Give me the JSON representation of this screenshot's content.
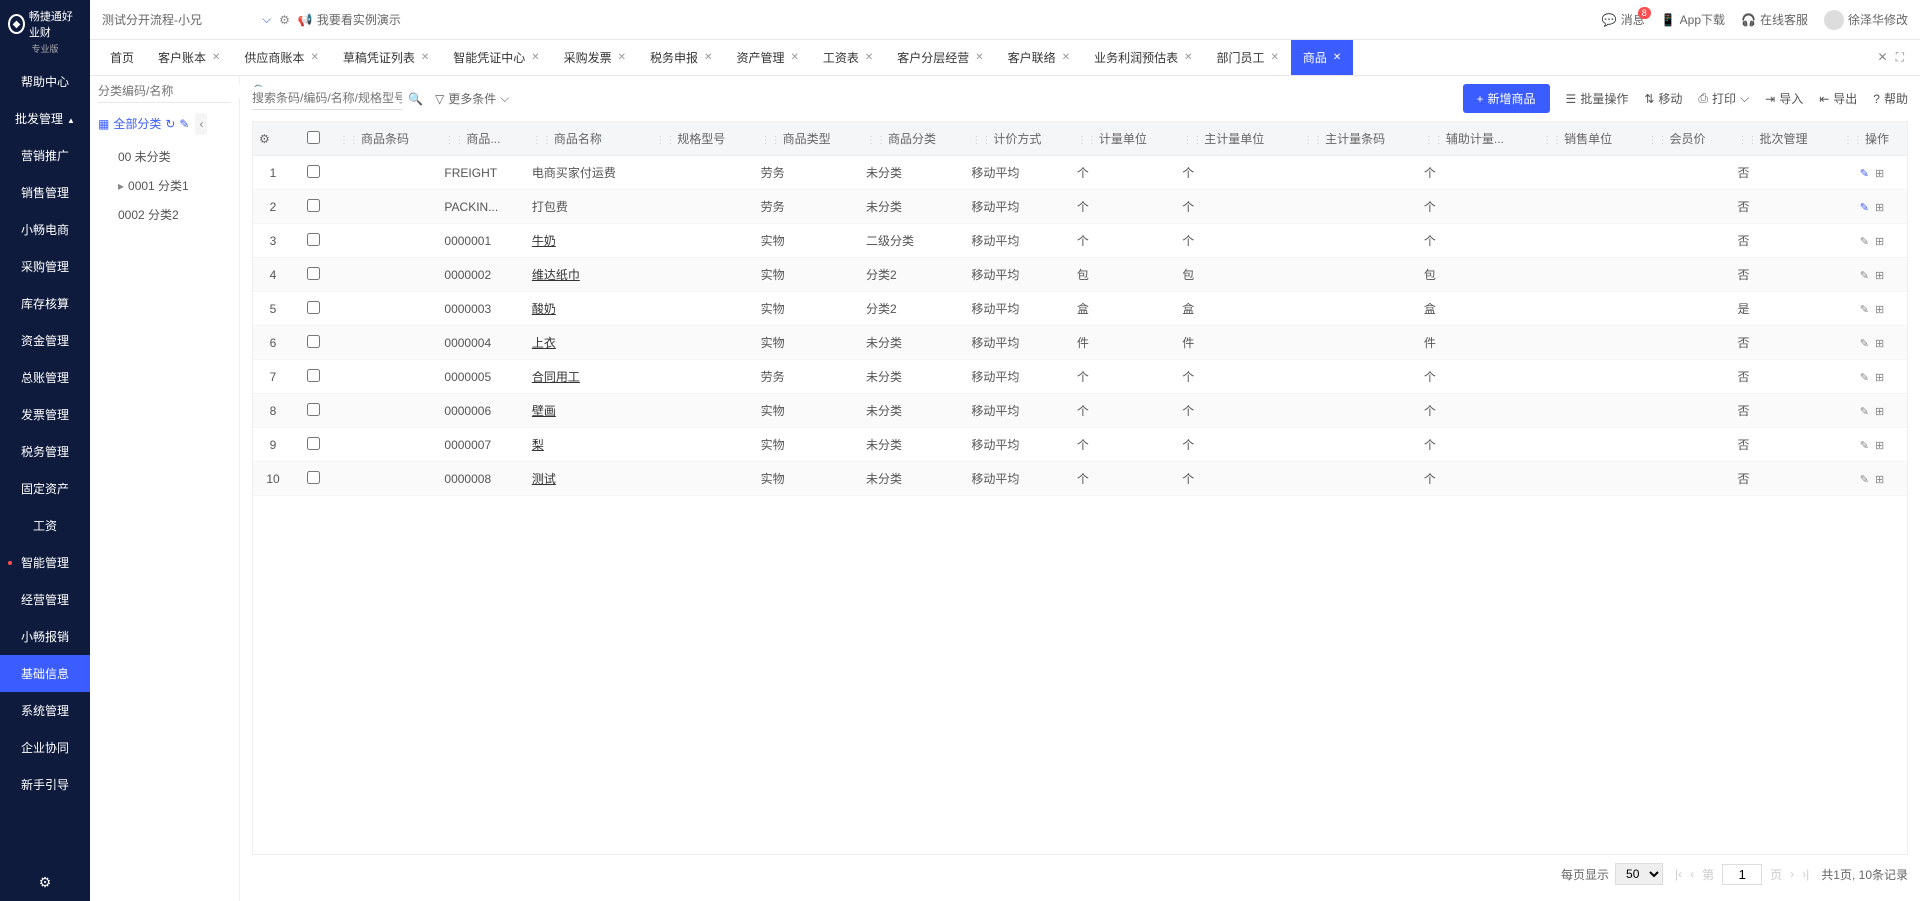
{
  "brand": {
    "name": "畅捷通好业财",
    "edition": "专业版"
  },
  "sidebar": {
    "items": [
      {
        "label": "帮助中心"
      },
      {
        "label": "批发管理",
        "expanded": true
      },
      {
        "label": "营销推广"
      },
      {
        "label": "销售管理"
      },
      {
        "label": "小畅电商"
      },
      {
        "label": "采购管理"
      },
      {
        "label": "库存核算"
      },
      {
        "label": "资金管理"
      },
      {
        "label": "总账管理"
      },
      {
        "label": "发票管理"
      },
      {
        "label": "税务管理"
      },
      {
        "label": "固定资产"
      },
      {
        "label": "工资"
      },
      {
        "label": "智能管理",
        "dot": true
      },
      {
        "label": "经营管理"
      },
      {
        "label": "小畅报销"
      },
      {
        "label": "基础信息",
        "active": true
      },
      {
        "label": "系统管理"
      },
      {
        "label": "企业协同"
      },
      {
        "label": "新手引导"
      }
    ]
  },
  "topbar": {
    "flow": "测试分开流程-小兄",
    "demo": "我要看实例演示",
    "msg": "消息",
    "msg_badge": "8",
    "download": "App下载",
    "service": "在线客服",
    "user": "徐泽华修改"
  },
  "tabs": [
    {
      "label": "首页",
      "closable": false
    },
    {
      "label": "客户账本"
    },
    {
      "label": "供应商账本"
    },
    {
      "label": "草稿凭证列表"
    },
    {
      "label": "智能凭证中心"
    },
    {
      "label": "采购发票"
    },
    {
      "label": "税务申报"
    },
    {
      "label": "资产管理"
    },
    {
      "label": "工资表"
    },
    {
      "label": "客户分层经营"
    },
    {
      "label": "客户联络"
    },
    {
      "label": "业务利润预估表"
    },
    {
      "label": "部门员工"
    },
    {
      "label": "商品",
      "active": true
    }
  ],
  "category": {
    "search_placeholder": "分类编码/名称",
    "all": "全部分类",
    "nodes": [
      {
        "label": "00 未分类"
      },
      {
        "label": "0001 分类1",
        "has_children": true
      },
      {
        "label": "0002 分类2"
      }
    ]
  },
  "toolbar": {
    "search_placeholder": "搜索条码/编码/名称/规格型号/别名",
    "more": "更多条件",
    "add": "新增商品",
    "batch": "批量操作",
    "move": "移动",
    "print": "打印",
    "import": "导入",
    "export": "导出",
    "help": "帮助"
  },
  "columns": [
    "商品条码",
    "商品...",
    "商品名称",
    "规格型号",
    "商品类型",
    "商品分类",
    "计价方式",
    "计量单位",
    "主计量单位",
    "主计量条码",
    "辅助计量...",
    "销售单位",
    "会员价",
    "批次管理",
    "操作"
  ],
  "rows": [
    {
      "code": "",
      "sku": "FREIGHT",
      "name": "电商买家付运费",
      "spec": "",
      "type": "劳务",
      "cat": "未分类",
      "price": "移动平均",
      "unit": "个",
      "main": "个",
      "mainbar": "",
      "aux": "个",
      "sale": "",
      "mprice": "",
      "batch": "否",
      "link": false,
      "edit_primary": true
    },
    {
      "code": "",
      "sku": "PACKIN...",
      "name": "打包费",
      "spec": "",
      "type": "劳务",
      "cat": "未分类",
      "price": "移动平均",
      "unit": "个",
      "main": "个",
      "mainbar": "",
      "aux": "个",
      "sale": "",
      "mprice": "",
      "batch": "否",
      "link": false,
      "edit_primary": true
    },
    {
      "code": "",
      "sku": "0000001",
      "name": "牛奶",
      "spec": "",
      "type": "实物",
      "cat": "二级分类",
      "price": "移动平均",
      "unit": "个",
      "main": "个",
      "mainbar": "",
      "aux": "个",
      "sale": "",
      "mprice": "",
      "batch": "否",
      "link": true
    },
    {
      "code": "",
      "sku": "0000002",
      "name": "维达纸巾",
      "spec": "",
      "type": "实物",
      "cat": "分类2",
      "price": "移动平均",
      "unit": "包",
      "main": "包",
      "mainbar": "",
      "aux": "包",
      "sale": "",
      "mprice": "",
      "batch": "否",
      "link": true
    },
    {
      "code": "",
      "sku": "0000003",
      "name": "酸奶",
      "spec": "",
      "type": "实物",
      "cat": "分类2",
      "price": "移动平均",
      "unit": "盒",
      "main": "盒",
      "mainbar": "",
      "aux": "盒",
      "sale": "",
      "mprice": "",
      "batch": "是",
      "link": true
    },
    {
      "code": "",
      "sku": "0000004",
      "name": "上衣",
      "spec": "",
      "type": "实物",
      "cat": "未分类",
      "price": "移动平均",
      "unit": "件",
      "main": "件",
      "mainbar": "",
      "aux": "件",
      "sale": "",
      "mprice": "",
      "batch": "否",
      "link": true
    },
    {
      "code": "",
      "sku": "0000005",
      "name": "合同用工",
      "spec": "",
      "type": "劳务",
      "cat": "未分类",
      "price": "移动平均",
      "unit": "个",
      "main": "个",
      "mainbar": "",
      "aux": "个",
      "sale": "",
      "mprice": "",
      "batch": "否",
      "link": true
    },
    {
      "code": "",
      "sku": "0000006",
      "name": "壁画",
      "spec": "",
      "type": "实物",
      "cat": "未分类",
      "price": "移动平均",
      "unit": "个",
      "main": "个",
      "mainbar": "",
      "aux": "个",
      "sale": "",
      "mprice": "",
      "batch": "否",
      "link": true
    },
    {
      "code": "",
      "sku": "0000007",
      "name": "梨",
      "spec": "",
      "type": "实物",
      "cat": "未分类",
      "price": "移动平均",
      "unit": "个",
      "main": "个",
      "mainbar": "",
      "aux": "个",
      "sale": "",
      "mprice": "",
      "batch": "否",
      "link": true
    },
    {
      "code": "",
      "sku": "0000008",
      "name": "测试",
      "spec": "",
      "type": "实物",
      "cat": "未分类",
      "price": "移动平均",
      "unit": "个",
      "main": "个",
      "mainbar": "",
      "aux": "个",
      "sale": "",
      "mprice": "",
      "batch": "否",
      "link": true
    }
  ],
  "pagination": {
    "per_page_label": "每页显示",
    "size": "50",
    "page_label_pre": "第",
    "page": "1",
    "page_label_suf": "页",
    "total": "共1页, 10条记录"
  }
}
